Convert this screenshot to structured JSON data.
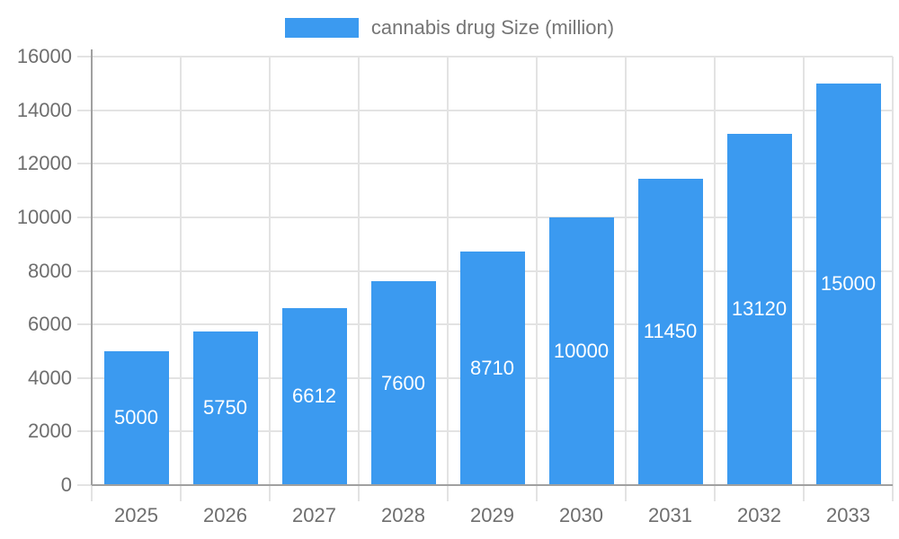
{
  "legend": {
    "label": "cannabis drug Size (million)"
  },
  "chart_data": {
    "type": "bar",
    "title": "cannabis drug Size (million)",
    "series_name": "cannabis drug Size (million)",
    "categories": [
      "2025",
      "2026",
      "2027",
      "2028",
      "2029",
      "2030",
      "2031",
      "2032",
      "2033"
    ],
    "values": [
      5000,
      5750,
      6612,
      7600,
      8710,
      10000,
      11450,
      13120,
      15000
    ],
    "xlabel": "",
    "ylabel": "",
    "ylim": [
      0,
      16000
    ],
    "y_ticks": [
      0,
      2000,
      4000,
      6000,
      8000,
      10000,
      12000,
      14000,
      16000
    ],
    "grid": true,
    "legend_position": "top-center",
    "bar_color": "#3b9af0",
    "bar_label_color": "#ffffff",
    "axis_color": "#a0a0a0",
    "grid_color": "#e3e3e3",
    "text_color": "#6e6e6e",
    "legend_text_color": "#757575",
    "background_color": "#ffffff"
  }
}
